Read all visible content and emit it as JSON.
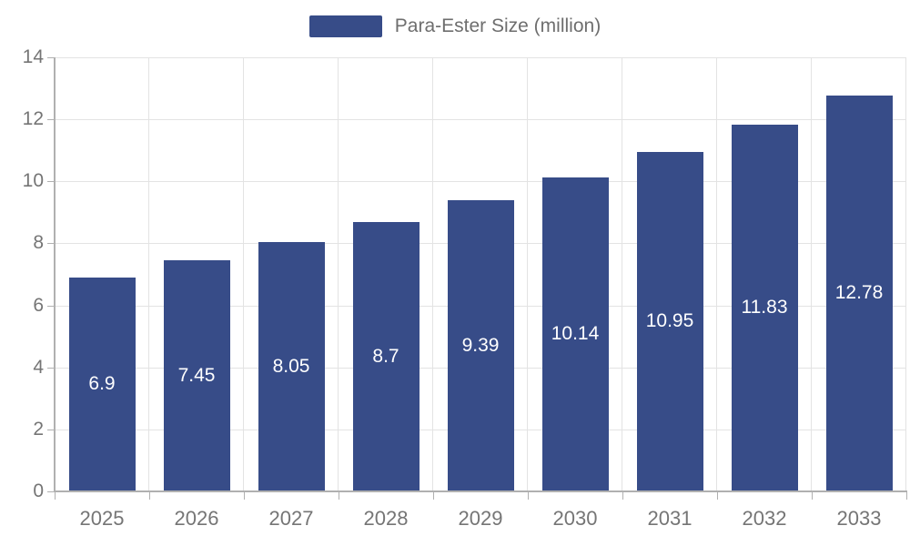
{
  "chart_data": {
    "type": "bar",
    "title": "",
    "legend": {
      "label": "Para-Ester Size (million)",
      "position": "top-center"
    },
    "categories": [
      "2025",
      "2026",
      "2027",
      "2028",
      "2029",
      "2030",
      "2031",
      "2032",
      "2033"
    ],
    "series": [
      {
        "name": "Para-Ester Size (million)",
        "values": [
          6.9,
          7.45,
          8.05,
          8.7,
          9.39,
          10.14,
          10.95,
          11.83,
          12.78
        ]
      }
    ],
    "value_labels": [
      "6.9",
      "7.45",
      "8.05",
      "8.7",
      "9.39",
      "10.14",
      "10.95",
      "11.83",
      "12.78"
    ],
    "xlabel": "",
    "ylabel": "",
    "ylim": [
      0,
      14
    ],
    "yticks": [
      0,
      2,
      4,
      6,
      8,
      10,
      12,
      14
    ],
    "grid": true,
    "colors": {
      "bar": "#374C88",
      "value_label": "#ffffff",
      "axis_label": "#757575",
      "legend_text": "#6e6e6e",
      "gridline": "#e3e3e3",
      "axis_line": "#b0b0b0",
      "background": "#ffffff"
    }
  }
}
